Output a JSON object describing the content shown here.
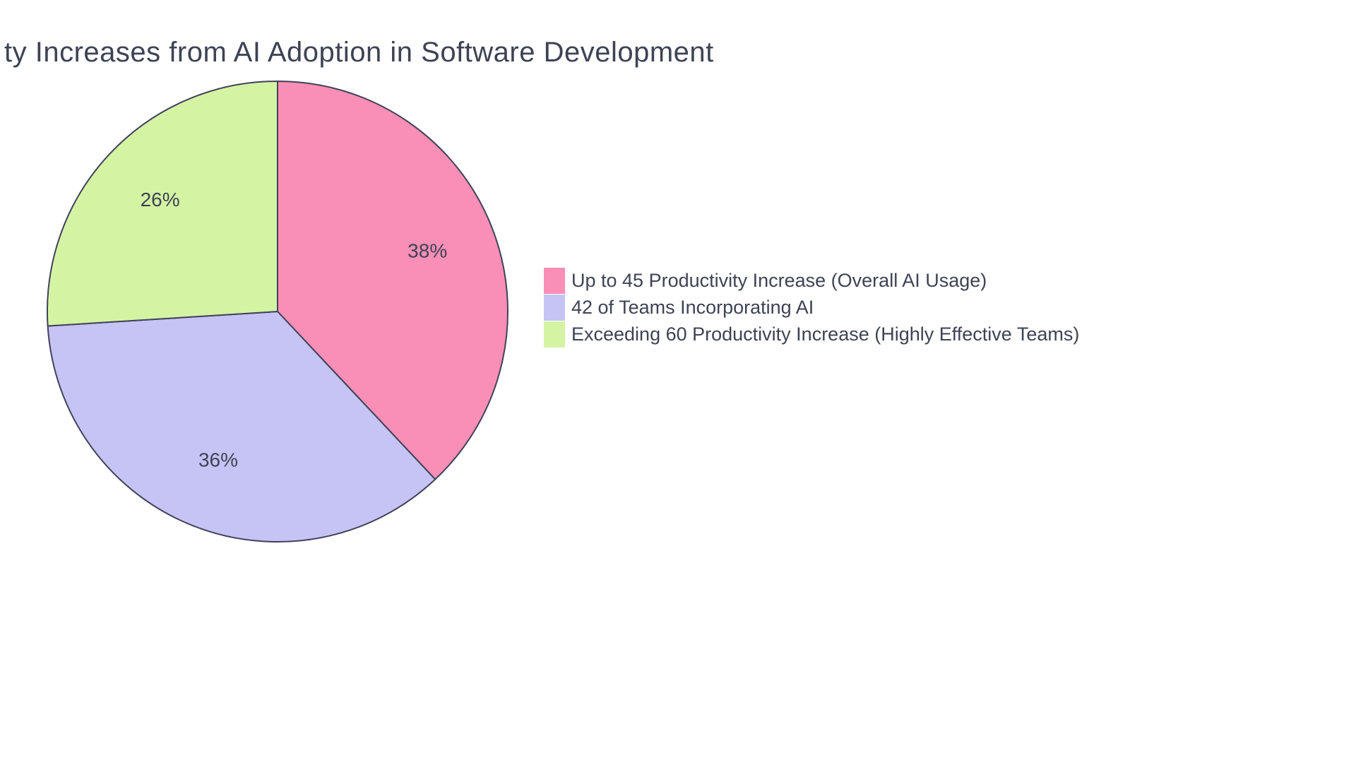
{
  "chart_data": {
    "type": "pie",
    "title": "ty Increases from AI Adoption in Software Development",
    "labels": [
      "Up to 45 Productivity Increase (Overall AI Usage)",
      "42 of Teams Incorporating AI",
      "Exceeding 60 Productivity Increase (Highly Effective Teams)"
    ],
    "values": [
      38,
      36,
      26
    ],
    "value_labels": [
      "38%",
      "36%",
      "26%"
    ],
    "colors": [
      "#F98FB6",
      "#C6C3F5",
      "#D4F4A4"
    ],
    "slice_border_color": "#42425A",
    "text_color": "#3E4354",
    "start_angle_deg": 0,
    "direction": "clockwise",
    "legend_position": "right",
    "background_color": "#FFFFFF"
  }
}
